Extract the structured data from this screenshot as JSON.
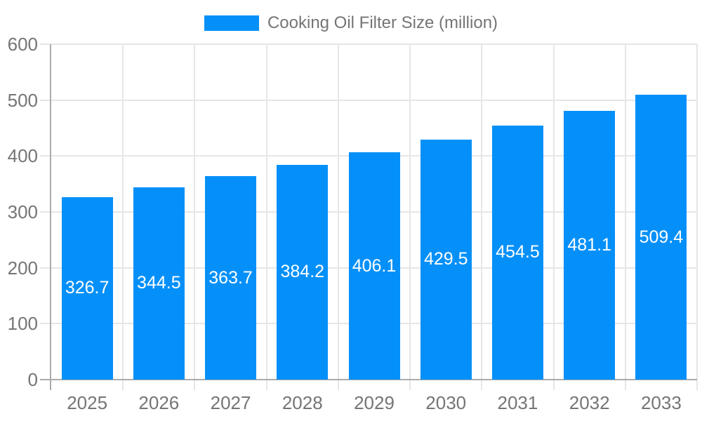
{
  "chart_data": {
    "type": "bar",
    "title": "",
    "xlabel": "",
    "ylabel": "",
    "legend_position": "top-center",
    "grid": true,
    "categories": [
      "2025",
      "2026",
      "2027",
      "2028",
      "2029",
      "2030",
      "2031",
      "2032",
      "2033"
    ],
    "series": [
      {
        "name": "Cooking Oil Filter Size (million)",
        "values": [
          326.7,
          344.5,
          363.7,
          384.2,
          406.1,
          429.5,
          454.5,
          481.1,
          509.4
        ]
      }
    ],
    "ylim": [
      0,
      600
    ],
    "yticks": [
      0,
      100,
      200,
      300,
      400,
      500,
      600
    ],
    "colors": {
      "bar": "#0590F9",
      "bar_label_text": "#FFFFFF",
      "axis_text": "#757575",
      "axis_line": "#ABABAB",
      "gridline": "#E6E6E6",
      "background": "#FFFFFF"
    }
  }
}
